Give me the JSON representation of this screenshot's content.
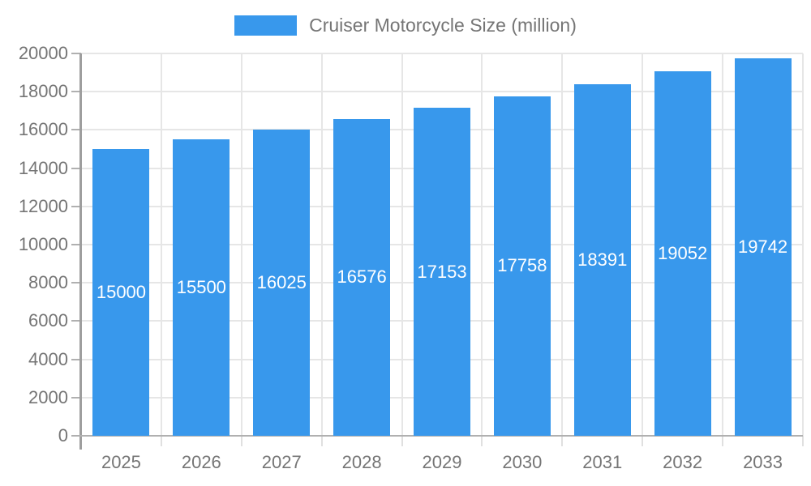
{
  "chart_data": {
    "type": "bar",
    "title": "Cruiser Motorcycle Size (million)",
    "categories": [
      "2025",
      "2026",
      "2027",
      "2028",
      "2029",
      "2030",
      "2031",
      "2032",
      "2033"
    ],
    "values": [
      15000,
      15500,
      16025,
      16576,
      17153,
      17758,
      18391,
      19052,
      19742
    ],
    "xlabel": "",
    "ylabel": "",
    "ylim": [
      0,
      20000
    ],
    "ytick_step": 2000,
    "ytick_labels": [
      "0",
      "2000",
      "4000",
      "6000",
      "8000",
      "10000",
      "12000",
      "14000",
      "16000",
      "18000",
      "20000"
    ],
    "legend_position": "top",
    "grid": true,
    "value_labels_inside_bars": true,
    "colors": {
      "bar": "#3898EC",
      "value_label": "#FFFFFF",
      "axis_text": "#757575",
      "gridline": "#E6E6E6",
      "y_axis_line": "#9E9E9E",
      "baseline": "#B0B0B0"
    }
  },
  "legend": {
    "label": "Cruiser Motorcycle Size (million)"
  }
}
